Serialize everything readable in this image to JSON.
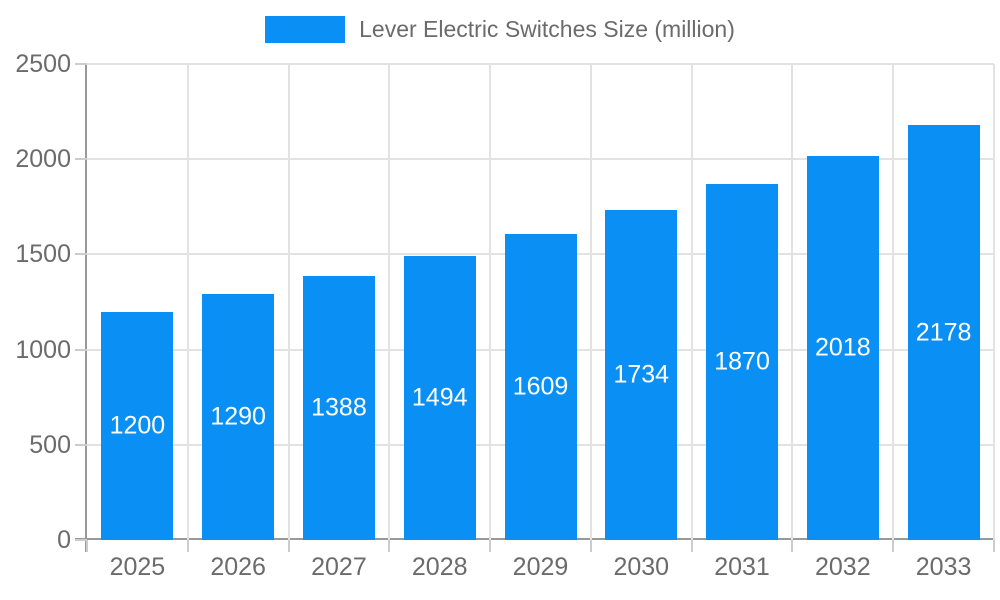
{
  "legend": {
    "label": "Lever Electric Switches Size (million)"
  },
  "chart_data": {
    "type": "bar",
    "title": "",
    "xlabel": "",
    "ylabel": "",
    "series_name": "Lever Electric Switches Size (million)",
    "categories": [
      "2025",
      "2026",
      "2027",
      "2028",
      "2029",
      "2030",
      "2031",
      "2032",
      "2033"
    ],
    "values": [
      1200,
      1290,
      1388,
      1494,
      1609,
      1734,
      1870,
      2018,
      2178
    ],
    "ylim": [
      0,
      2500
    ],
    "ytick_step": 500,
    "yticks": [
      "0",
      "500",
      "1000",
      "1500",
      "2000",
      "2500"
    ],
    "grid": true,
    "legend_position": "top",
    "bar_labels": "inside-center-white",
    "colors": {
      "bar": "#0a90f5",
      "grid": "#e2e2e2",
      "tick": "#cccccc",
      "axis": "#999999",
      "text": "#6b6b6b",
      "value_label": "#ffffff",
      "background": "#ffffff"
    }
  }
}
